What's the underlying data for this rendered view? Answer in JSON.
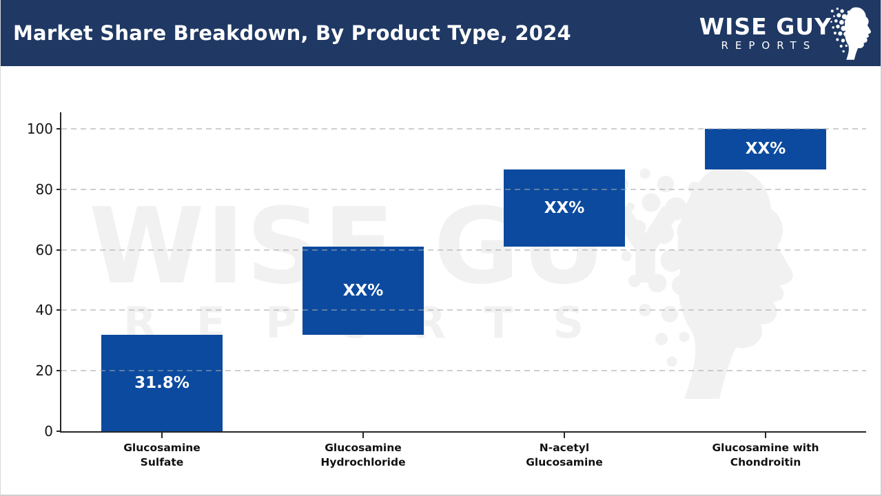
{
  "header": {
    "title": "Market Share Breakdown, By Product Type, 2024",
    "logo": {
      "wordmark": "WISE GUY",
      "subtext": "REPORTS"
    }
  },
  "watermark": {
    "line1": "WISE GUY",
    "line2": "REPORTS"
  },
  "colors": {
    "header_bg": "#1f3864",
    "bar": "#0b4a9e",
    "axis": "#262626",
    "gridline_gray": "#a8a8a8",
    "bar_label_text": "#ffffff",
    "watermark_gray": "#f1f1f1",
    "frame_border": "#cfcfcf"
  },
  "chart_data": {
    "type": "bar",
    "subtype": "waterfall-stacked",
    "title": "Market Share Breakdown, By Product Type, 2024",
    "categories": [
      "Glucosamine Sulfate",
      "Glucosamine Hydrochloride",
      "N-acetyl Glucosamine",
      "Glucosamine with Chondroitin"
    ],
    "categories_display": [
      [
        "Glucosamine",
        "Sulfate"
      ],
      [
        "Glucosamine",
        "Hydrochloride"
      ],
      [
        "N-acetyl",
        "Glucosamine"
      ],
      [
        "Glucosamine with",
        "Chondroitin"
      ]
    ],
    "segments": [
      {
        "category": "Glucosamine Sulfate",
        "start": 0,
        "end": 31.8,
        "label": "31.8%"
      },
      {
        "category": "Glucosamine Hydrochloride",
        "start": 31.8,
        "end": 61.0,
        "label": "XX%"
      },
      {
        "category": "N-acetyl Glucosamine",
        "start": 61.0,
        "end": 86.6,
        "label": "XX%"
      },
      {
        "category": "Glucosamine with Chondroitin",
        "start": 86.6,
        "end": 100,
        "label": "XX%"
      }
    ],
    "ylim": [
      0,
      100
    ],
    "yticks": [
      0,
      20,
      40,
      60,
      80,
      100
    ],
    "grid": "horizontal dashed, drawn over bars",
    "legend": "none"
  }
}
